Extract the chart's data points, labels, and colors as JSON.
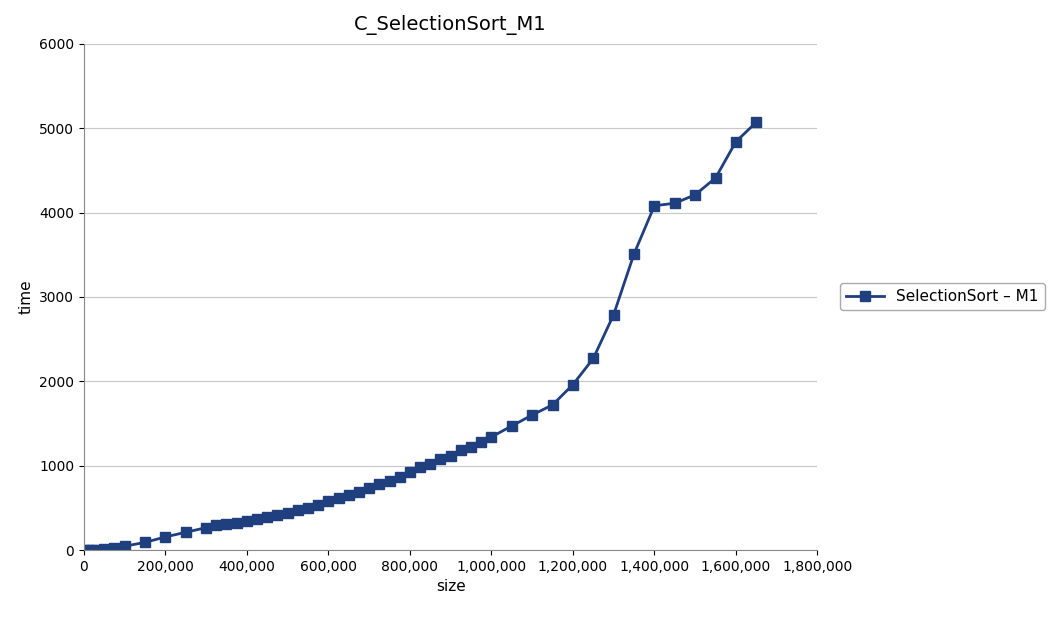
{
  "title": "C_SelectionSort_M1",
  "xlabel": "size",
  "ylabel": "time",
  "line_color": "#1F3F7F",
  "marker": "s",
  "legend_label": "SelectionSort – M1",
  "xlim": [
    0,
    1800000
  ],
  "ylim": [
    0,
    6000
  ],
  "xtick_step": 200000,
  "ytick_step": 1000,
  "x_data": [
    0,
    10000,
    20000,
    30000,
    50000,
    75000,
    100000,
    150000,
    200000,
    250000,
    300000,
    325000,
    350000,
    375000,
    400000,
    425000,
    450000,
    475000,
    500000,
    525000,
    550000,
    575000,
    600000,
    625000,
    650000,
    675000,
    700000,
    725000,
    750000,
    775000,
    800000,
    825000,
    850000,
    875000,
    900000,
    925000,
    950000,
    975000,
    1000000,
    1050000,
    1100000,
    1150000,
    1200000,
    1250000,
    1300000,
    1350000,
    1400000,
    1450000,
    1500000,
    1550000,
    1600000,
    1650000
  ],
  "y_data": [
    0,
    1,
    3,
    5,
    12,
    25,
    45,
    90,
    155,
    210,
    265,
    295,
    310,
    325,
    345,
    370,
    395,
    415,
    440,
    470,
    500,
    530,
    580,
    620,
    650,
    690,
    730,
    780,
    820,
    870,
    930,
    980,
    1020,
    1080,
    1120,
    1180,
    1220,
    1280,
    1340,
    1470,
    1600,
    1720,
    1960,
    2270,
    2790,
    3510,
    4080,
    4110,
    4210,
    4410,
    4840,
    5070
  ],
  "background_color": "#FFFFFF",
  "grid_color": "#C8C8C8",
  "title_fontsize": 14,
  "label_fontsize": 11,
  "tick_fontsize": 10,
  "legend_fontsize": 11,
  "line_width": 2.0,
  "marker_size": 7
}
